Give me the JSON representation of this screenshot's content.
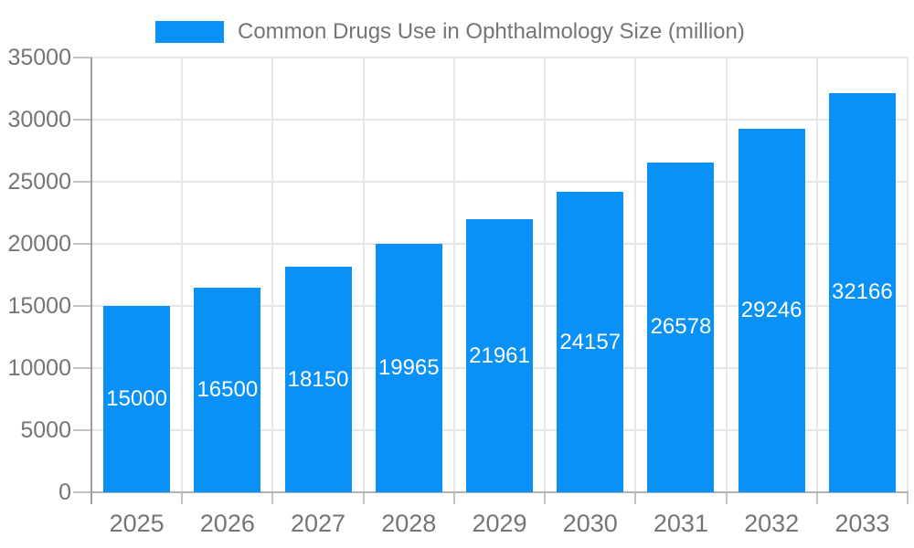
{
  "legend": {
    "label": "Common Drugs Use in Ophthalmology Size (million)",
    "swatch_color": "#0991f7",
    "text_color": "#757575"
  },
  "chart_data": {
    "type": "bar",
    "title": "Common Drugs Use in Ophthalmology Size (million)",
    "categories": [
      "2025",
      "2026",
      "2027",
      "2028",
      "2029",
      "2030",
      "2031",
      "2032",
      "2033"
    ],
    "values": [
      15000,
      16500,
      18150,
      19965,
      21961,
      24157,
      26578,
      29246,
      32166
    ],
    "bar_value_labels": [
      "15000",
      "16500",
      "18150",
      "19965",
      "21961",
      "24157",
      "26578",
      "29246",
      "32166"
    ],
    "xlabel": "",
    "ylabel": "",
    "ylim": [
      0,
      35000
    ],
    "yticks": [
      0,
      5000,
      10000,
      15000,
      20000,
      25000,
      30000,
      35000
    ],
    "grid": true,
    "legend_position": "top",
    "bar_labels_inside": true,
    "colors": {
      "bar": "#0991f7",
      "bar_label": "#ffffff",
      "axis_text": "#757575",
      "axis_line": "#9e9e9e",
      "x_axis_line": "#b3b3b3",
      "grid_line": "#e6e6e6",
      "tick_line": "#c4c4c4"
    }
  }
}
